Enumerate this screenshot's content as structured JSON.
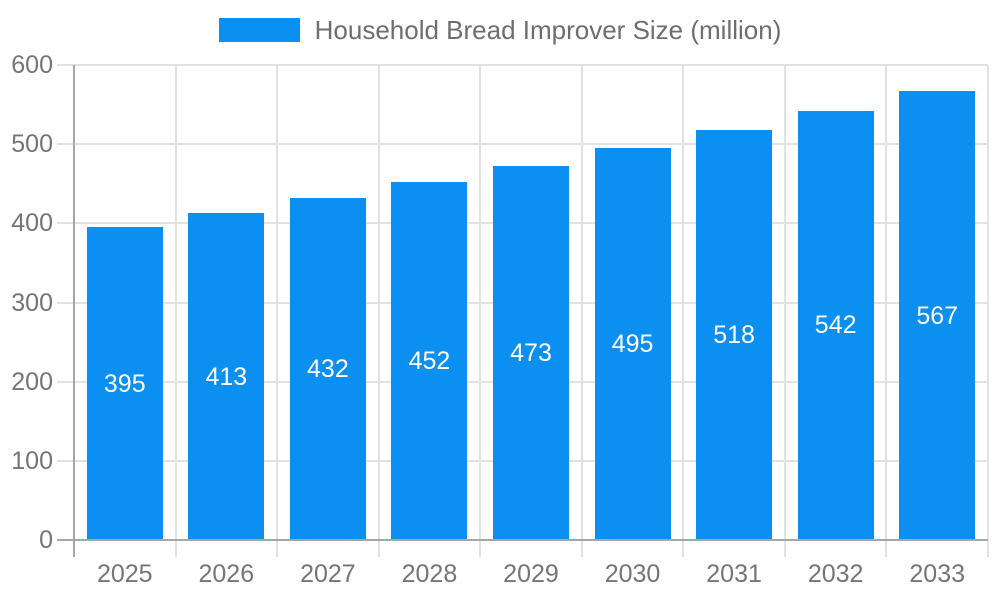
{
  "chart_data": {
    "type": "bar",
    "title": "Household Bread Improver Size (million)",
    "legend": [
      "Household Bread Improver Size (million)"
    ],
    "legend_position": "top",
    "categories": [
      "2025",
      "2026",
      "2027",
      "2028",
      "2029",
      "2030",
      "2031",
      "2032",
      "2033"
    ],
    "values": [
      395,
      413,
      432,
      452,
      473,
      495,
      518,
      542,
      567
    ],
    "value_labels": [
      "395",
      "413",
      "432",
      "452",
      "473",
      "495",
      "518",
      "542",
      "567"
    ],
    "yticks": [
      0,
      100,
      200,
      300,
      400,
      500,
      600
    ],
    "ylim": [
      0,
      600
    ],
    "xlabel": "",
    "ylabel": "",
    "grid": true,
    "colors": {
      "bar": "#0b90f2",
      "value_label": "#ffffff",
      "axis_text": "#757575",
      "legend_text": "#6e6e6e",
      "axis_line": "#a6a6a6",
      "gridline": "#e2e2e2",
      "background": "#ffffff"
    }
  }
}
